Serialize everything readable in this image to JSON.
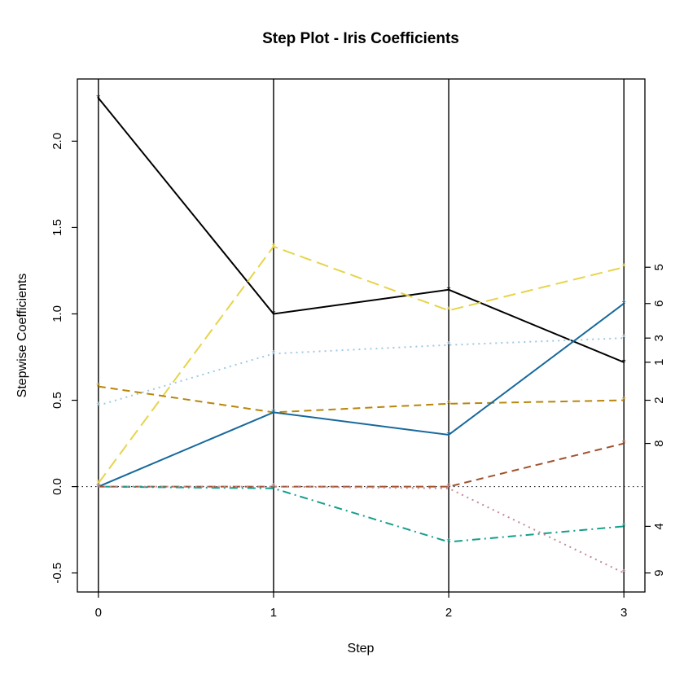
{
  "chart_data": {
    "type": "line",
    "title": "Step Plot - Iris Coefficients",
    "xlabel": "Step",
    "ylabel": "Stepwise Coefficients",
    "x": [
      0,
      1,
      2,
      3
    ],
    "xlim": [
      -0.12,
      3.12
    ],
    "ylim": [
      -0.61,
      2.36
    ],
    "xticks": {
      "values": [
        0,
        1,
        2,
        3
      ],
      "labels": [
        "0",
        "1",
        "2",
        "3"
      ]
    },
    "yticks": {
      "values": [
        -0.5,
        0.0,
        0.5,
        1.0,
        1.5,
        2.0
      ],
      "labels": [
        "-0.5",
        "0.0",
        "0.5",
        "1.0",
        "1.5",
        "2.0"
      ]
    },
    "vlines": [
      0,
      1,
      2,
      3
    ],
    "hline": 0,
    "marker": "*",
    "grid": false,
    "legend_position": "none",
    "series": [
      {
        "right_label": "1",
        "color": "#000000",
        "linestyle": "solid",
        "values": [
          2.25,
          1.0,
          1.14,
          0.72
        ]
      },
      {
        "right_label": "5",
        "color": "#E6D44A",
        "linestyle": "longdash",
        "values": [
          0.02,
          1.39,
          1.02,
          1.27
        ]
      },
      {
        "right_label": "3",
        "color": "#9EC9E2",
        "linestyle": "dotted",
        "values": [
          0.47,
          0.77,
          0.82,
          0.86
        ]
      },
      {
        "right_label": "2",
        "color": "#B8860B",
        "linestyle": "dashed",
        "values": [
          0.58,
          0.43,
          0.48,
          0.5
        ]
      },
      {
        "right_label": "6",
        "color": "#17699B",
        "linestyle": "solid",
        "values": [
          0.0,
          0.43,
          0.3,
          1.06
        ]
      },
      {
        "right_label": "8",
        "color": "#A0522D",
        "linestyle": "dashed",
        "values": [
          0.0,
          0.0,
          0.0,
          0.25
        ]
      },
      {
        "right_label": "4",
        "color": "#169E8C",
        "linestyle": "dashdot",
        "values": [
          0.0,
          -0.01,
          -0.32,
          -0.23
        ]
      },
      {
        "right_label": "9",
        "color": "#C08A96",
        "linestyle": "dotted",
        "values": [
          0.0,
          0.0,
          -0.01,
          -0.5
        ]
      }
    ]
  }
}
